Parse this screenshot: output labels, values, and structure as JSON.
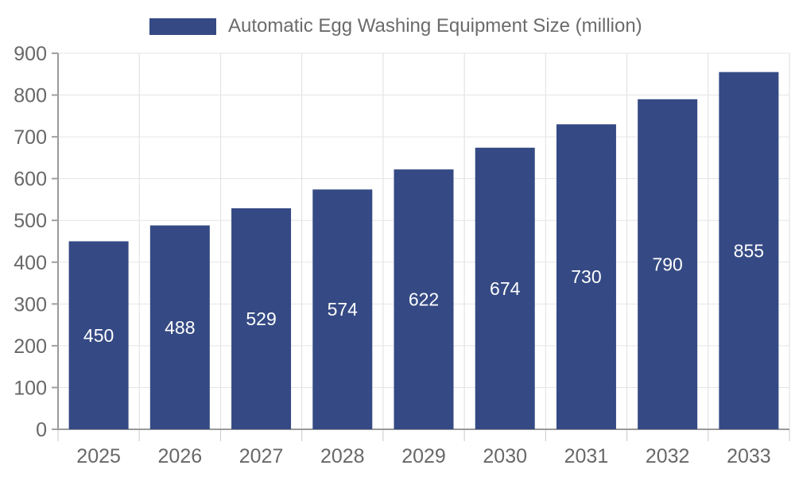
{
  "legend": {
    "label": "Automatic Egg Washing Equipment Size (million)"
  },
  "colors": {
    "bar": "#354a84",
    "value_label": "#ffffff",
    "tick_label": "#686868",
    "legend_label": "#6b6b6b",
    "axis_line": "#9a9a9a",
    "y_tick_mark": "#a0a0a0",
    "x_tick_mark": "#c9c9c9",
    "grid_horizontal": "#e5e5e5",
    "grid_vertical": "#dedede",
    "background": "#ffffff"
  },
  "chart_data": {
    "type": "bar",
    "title": "",
    "xlabel": "",
    "ylabel": "",
    "categories": [
      "2025",
      "2026",
      "2027",
      "2028",
      "2029",
      "2030",
      "2031",
      "2032",
      "2033"
    ],
    "series": [
      {
        "name": "Automatic Egg Washing Equipment Size (million)",
        "values": [
          450,
          488,
          529,
          574,
          622,
          674,
          730,
          790,
          855
        ]
      }
    ],
    "value_labels_shown": true,
    "ylim": [
      0,
      900
    ],
    "ytick_step": 100,
    "ytick_labels": [
      "0",
      "100",
      "200",
      "300",
      "400",
      "500",
      "600",
      "700",
      "800",
      "900"
    ],
    "grid": true,
    "legend_position": "top-center"
  }
}
